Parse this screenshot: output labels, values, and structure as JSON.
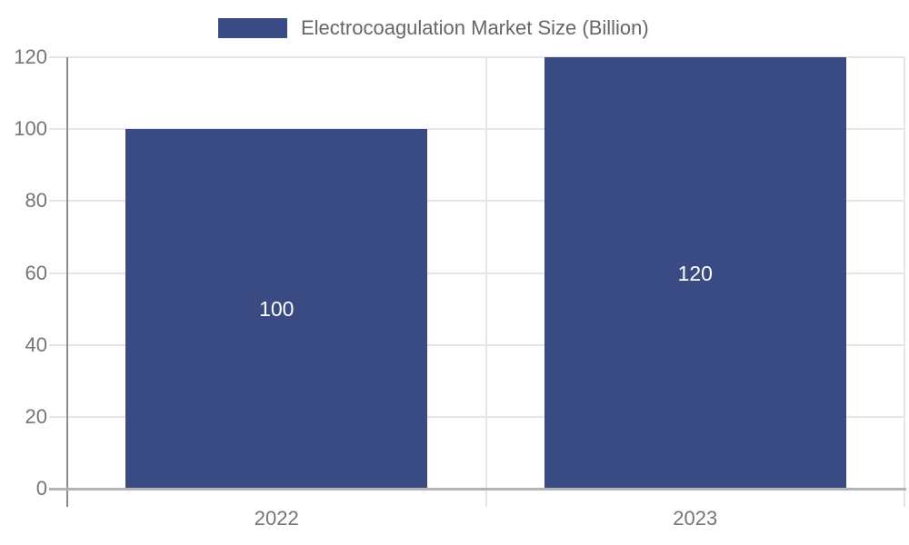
{
  "chart_data": {
    "type": "bar",
    "categories": [
      "2022",
      "2023"
    ],
    "values": [
      100,
      120
    ],
    "value_labels": [
      "100",
      "120"
    ],
    "series_label": "Electrocoagulation Market Size (Billion)",
    "title": "",
    "xlabel": "",
    "ylabel": "",
    "ylim": [
      0,
      120
    ],
    "yticks": [
      0,
      20,
      40,
      60,
      80,
      100,
      120
    ],
    "grid": "on",
    "legend_position": "top",
    "colors": {
      "bar": "#3a4a83",
      "value_label": "#ffffff",
      "axis_text": "#757575",
      "legend_text": "#666666",
      "gridline": "#e6e6e6",
      "y_axis_line": "#8c8c8c",
      "x_axis_line": "#b3b3b3",
      "background": "#ffffff"
    }
  }
}
